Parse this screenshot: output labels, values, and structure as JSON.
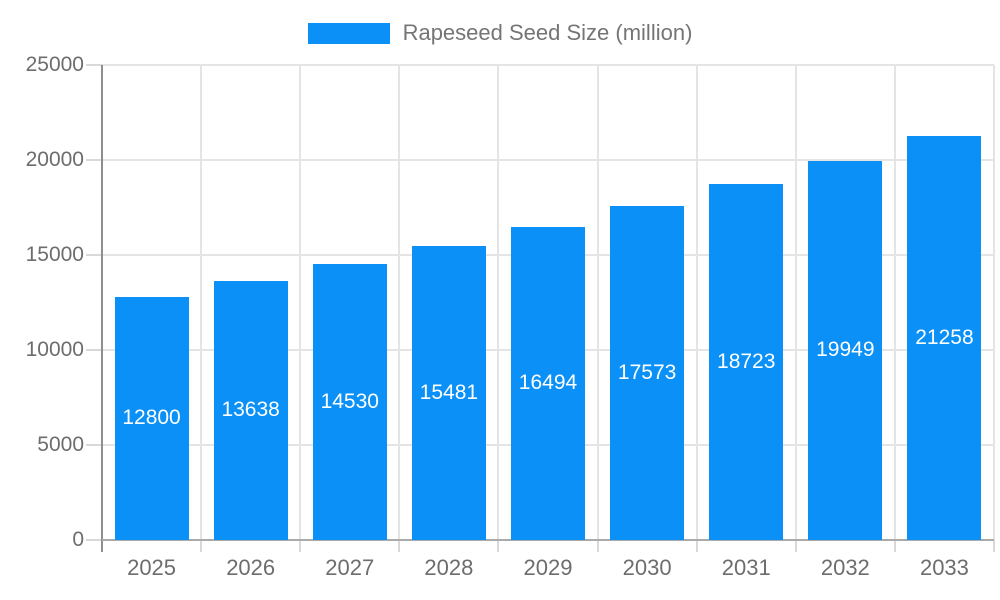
{
  "legend": {
    "label": "Rapeseed Seed Size (million)"
  },
  "chart_data": {
    "type": "bar",
    "title": "",
    "series_name": "Rapeseed Seed Size (million)",
    "categories": [
      "2025",
      "2026",
      "2027",
      "2028",
      "2029",
      "2030",
      "2031",
      "2032",
      "2033"
    ],
    "values": [
      12800,
      13638,
      14530,
      15481,
      16494,
      17573,
      18723,
      19949,
      21258
    ],
    "xlabel": "",
    "ylabel": "",
    "ylim": [
      0,
      25000
    ],
    "ytick_step": 5000,
    "yticks": [
      "0",
      "5000",
      "10000",
      "15000",
      "20000",
      "25000"
    ],
    "grid": true,
    "legend_position": "top",
    "bar_labels": "inside-center-white",
    "colors": {
      "bar": "#0a90f6",
      "grid_line": "#e4e4e4",
      "tick_line": "#d9d9d9",
      "y_axis_line": "#8f8f8f",
      "x_axis_line": "#aaaaaa",
      "axis_text": "#6d6d6d",
      "legend_text": "#757575",
      "bar_value_text": "#ffffff"
    }
  }
}
